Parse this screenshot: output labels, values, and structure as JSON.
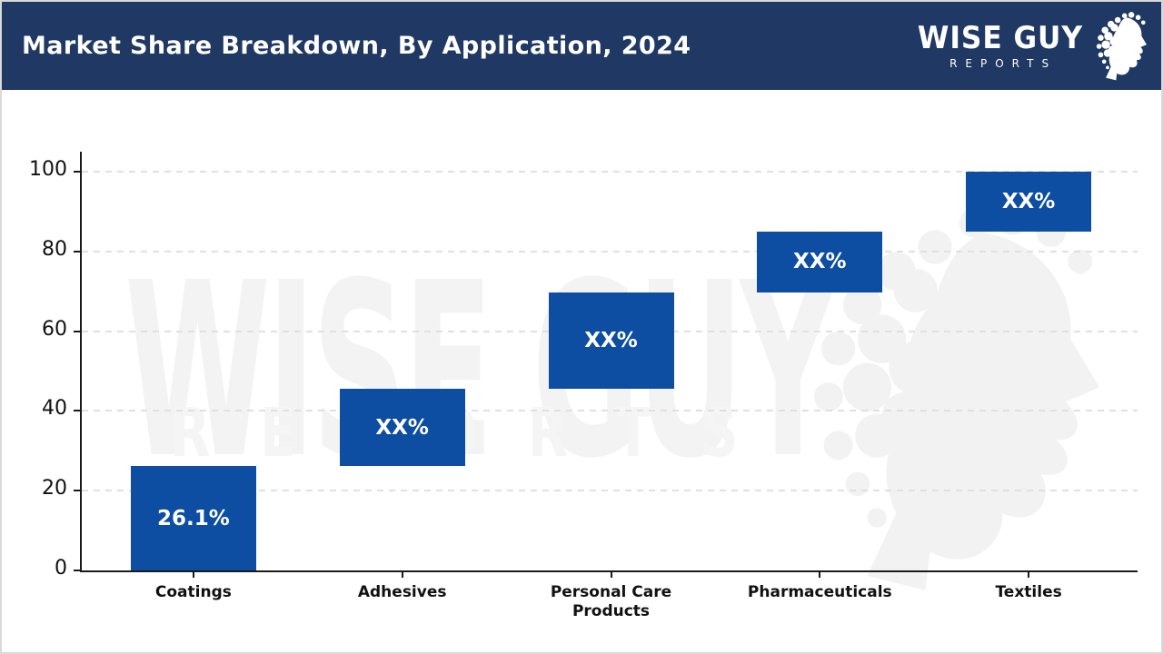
{
  "page": {
    "background": "#ffffff",
    "border_color": "#d9d9d9"
  },
  "header": {
    "bg_color": "#1f3864",
    "title": "Market Share Breakdown, By Application, 2024"
  },
  "logo": {
    "line1": "WISE GUY",
    "line2": "REPORTS",
    "face_icon": "face-dots-icon"
  },
  "watermark": {
    "line1": "WISE GUY",
    "line2": "REPORTS",
    "color": "#f3f3f3",
    "face_icon": "face-dots-icon"
  },
  "chart_data": {
    "type": "bar",
    "subtype": "waterfall",
    "title": "Market Share Breakdown, By Application, 2024",
    "xlabel": "",
    "ylabel": "",
    "ylim": [
      0,
      105
    ],
    "yticks": [
      0,
      20,
      40,
      60,
      80,
      100
    ],
    "grid": {
      "horizontal": true,
      "style": "dashed",
      "color": "#e0e0e0"
    },
    "legend": "none",
    "bar_color": "#0d4da2",
    "label_color": "#ffffff",
    "axis_color": "#1a1a1a",
    "categories": [
      "Coatings",
      "Adhesives",
      "Personal Care Products",
      "Pharmaceuticals",
      "Textiles"
    ],
    "segments": [
      {
        "category": "Coatings",
        "start": 0,
        "end": 26.1,
        "label": "26.1%"
      },
      {
        "category": "Adhesives",
        "start": 26.1,
        "end": 45.5,
        "label": "XX%"
      },
      {
        "category": "Personal Care Products",
        "start": 45.5,
        "end": 69.7,
        "label": "XX%"
      },
      {
        "category": "Pharmaceuticals",
        "start": 69.7,
        "end": 85.0,
        "label": "XX%"
      },
      {
        "category": "Textiles",
        "start": 85.0,
        "end": 100.0,
        "label": "XX%"
      }
    ]
  }
}
